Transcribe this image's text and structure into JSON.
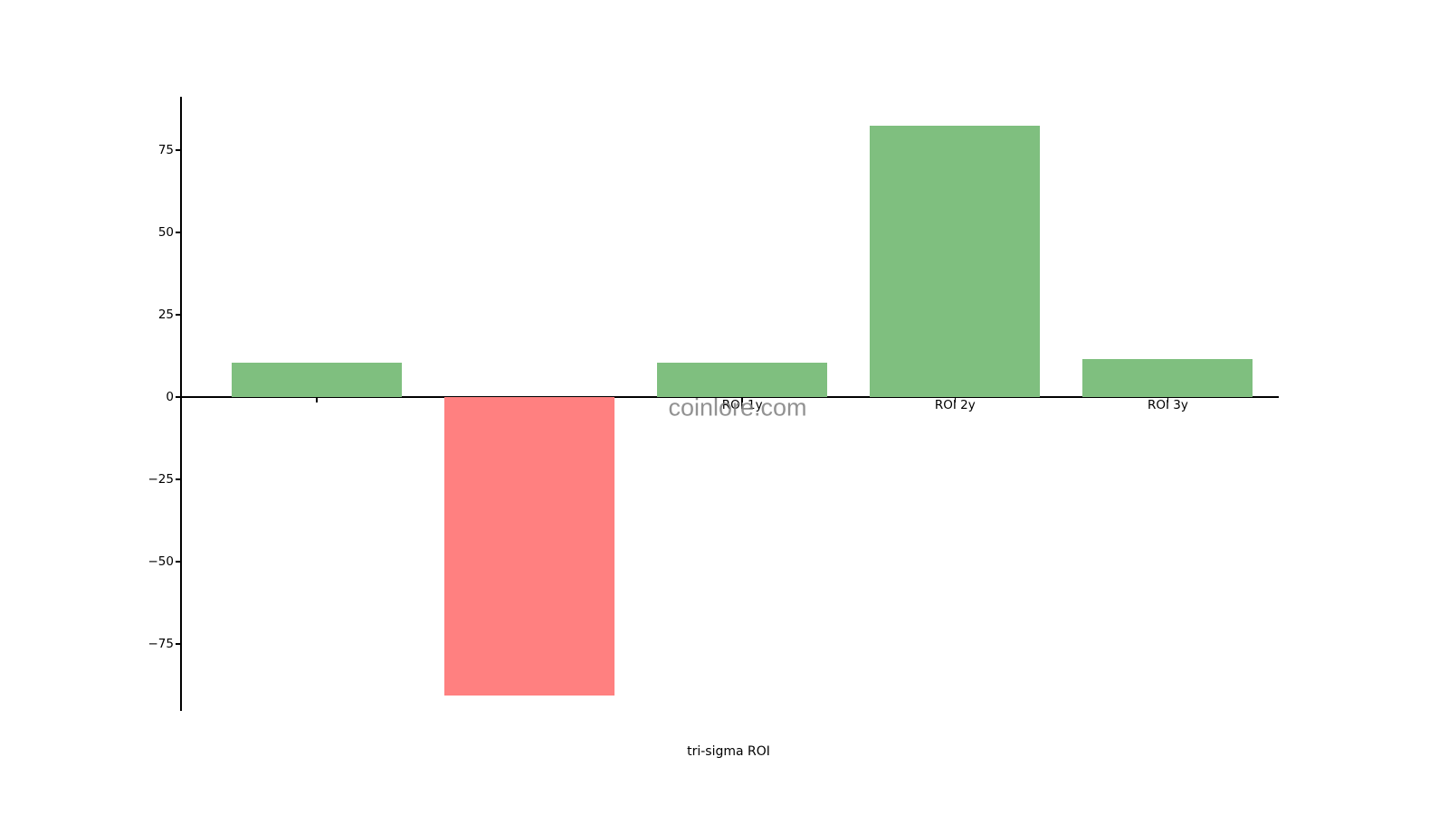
{
  "watermark": "coinlore.com",
  "chart_data": {
    "type": "bar",
    "categories": [
      "",
      "",
      "ROI 1y",
      "ROI 2y",
      "ROI 3y"
    ],
    "values": [
      10.4,
      -90.7,
      10.4,
      82.4,
      11.5
    ],
    "title": "",
    "xlabel": "tri-sigma ROI",
    "ylabel": "",
    "ylim": [
      -95,
      91
    ],
    "yticks": [
      75,
      50,
      25,
      0,
      -25,
      -50,
      -75
    ],
    "ytick_labels": [
      "75",
      "50",
      "25",
      "0",
      "−25",
      "−50",
      "−75"
    ],
    "grid": false,
    "legend": false,
    "axis_position": "zero",
    "colors": {
      "positive": "#7fbf7f",
      "negative": "#ff8080",
      "axis": "#000000",
      "text": "#000000",
      "watermark": "#808080"
    }
  }
}
